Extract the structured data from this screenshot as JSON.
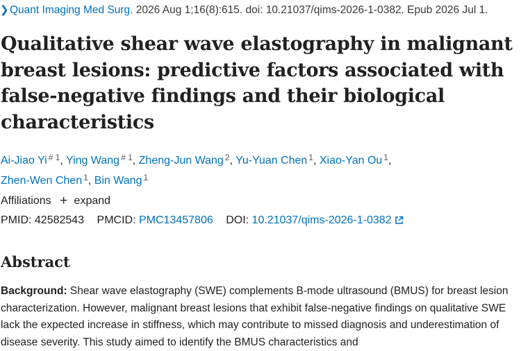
{
  "citation": {
    "journal": "Quant Imaging Med Surg.",
    "details": " 2026 Aug 1;16(8):615. doi: 10.21037/qims-2026-1-0382. Epub 2026 Jul 1."
  },
  "title": "Qualitative shear wave elastography in malignant breast lesions: predictive factors associated with false-negative findings and their biological characteristics",
  "authors": [
    {
      "name": "Ai-Jiao Yi",
      "sup": "# 1"
    },
    {
      "name": "Ying Wang",
      "sup": "# 1"
    },
    {
      "name": "Zheng-Jun Wang",
      "sup": "2"
    },
    {
      "name": "Yu-Yuan Chen",
      "sup": "1"
    },
    {
      "name": "Xiao-Yan Ou",
      "sup": "1"
    },
    {
      "name": "Zhen-Wen Chen",
      "sup": "1"
    },
    {
      "name": "Bin Wang",
      "sup": "1"
    }
  ],
  "affiliations": {
    "label": "Affiliations",
    "expand": "expand"
  },
  "ids": {
    "pmid_label": "PMID:",
    "pmid": "42582543",
    "pmcid_label": "PMCID:",
    "pmcid": "PMC13457806",
    "doi_label": "DOI:",
    "doi": "10.21037/qims-2026-1-0382"
  },
  "abstract": {
    "heading": "Abstract",
    "background_label": "Background:",
    "background_text": " Shear wave elastography (SWE) complements B-mode ultrasound (BMUS) for breast lesion characterization. However, malignant breast lesions that exhibit false-negative findings on qualitative SWE lack the expected increase in stiffness, which may contribute to missed diagnosis and underestimation of disease severity. This study aimed to identify the BMUS characteristics and"
  },
  "colors": {
    "link": "#0071bc",
    "text": "#212121"
  },
  "icons": {
    "citation_chevron": "chevron-right-icon",
    "expand": "plus-icon",
    "doi_link": "external-link-icon"
  }
}
